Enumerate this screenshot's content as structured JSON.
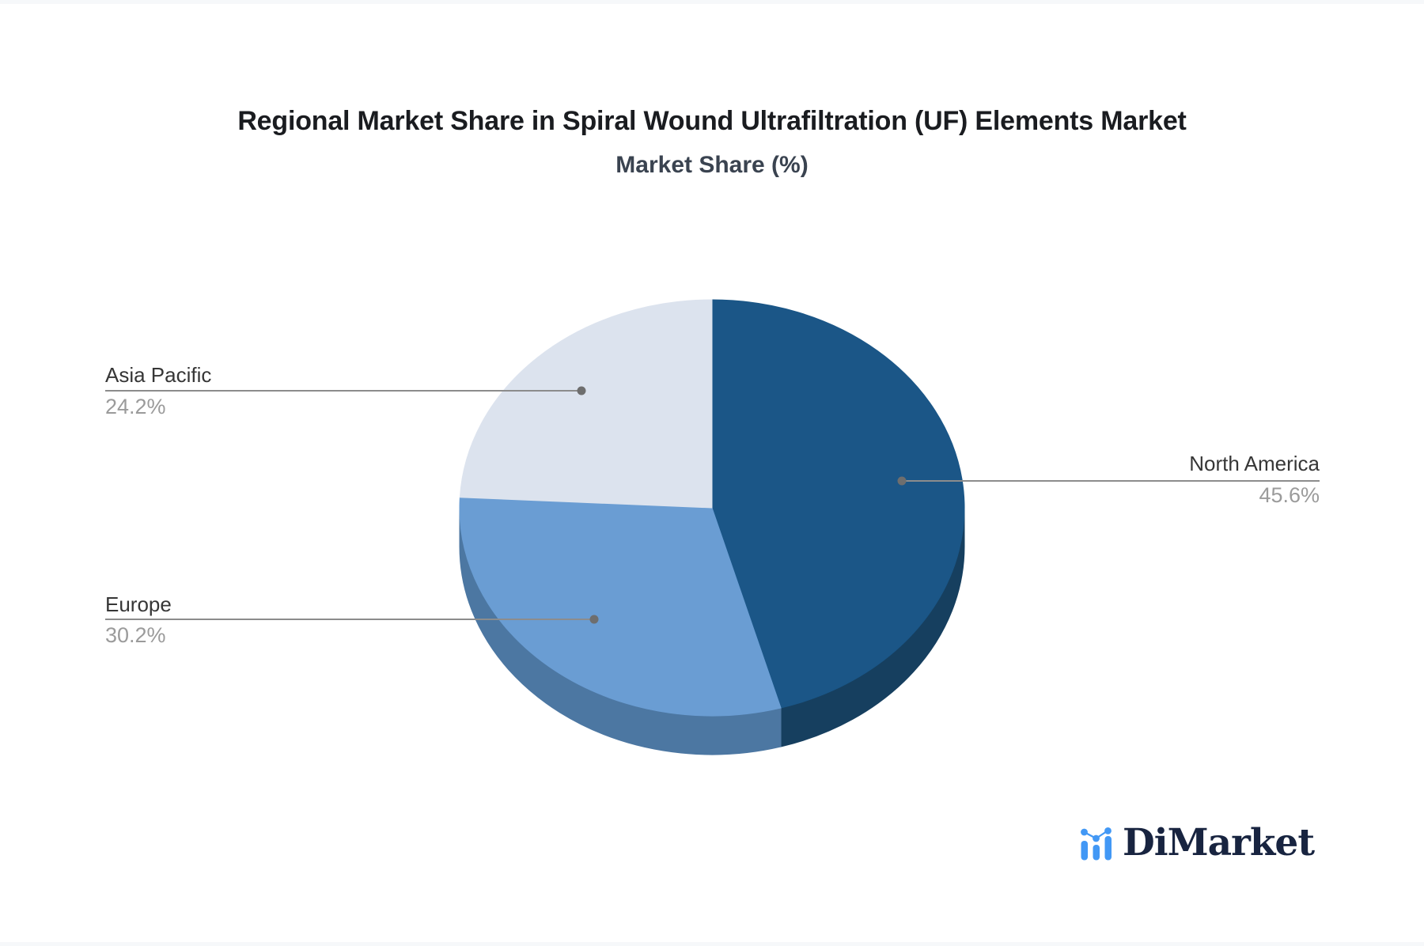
{
  "header": {
    "title": "Regional Market Share in Spiral Wound Ultrafiltration (UF) Elements Market",
    "subtitle": "Market Share (%)"
  },
  "chart_data": {
    "type": "pie",
    "style": "3d",
    "title": "Regional Market Share in Spiral Wound Ultrafiltration (UF) Elements Market",
    "subtitle": "Market Share (%)",
    "unit": "%",
    "start_angle_deg": 0,
    "direction": "clockwise",
    "legend_position": "callout-labels",
    "slices": [
      {
        "label": "North America",
        "value": 45.6,
        "value_label": "45.6%",
        "color": "#1b5687",
        "side_color": "#163f5f"
      },
      {
        "label": "Europe",
        "value": 30.2,
        "value_label": "30.2%",
        "color": "#6a9dd3",
        "side_color": "#4c77a2"
      },
      {
        "label": "Asia Pacific",
        "value": 24.2,
        "value_label": "24.2%",
        "color": "#dce3ee",
        "side_color": "#b9c5d6"
      }
    ],
    "callout_line_color": "#8c8c8c",
    "callout_dot_color": "#6e6e6e",
    "label_color": "#363636",
    "value_color": "#9b9b9b"
  },
  "branding": {
    "logo_text": "DiMarket",
    "logo_icon": "bar-line-chart-icon",
    "logo_text_color": "#182440",
    "logo_icon_color": "#4298f5"
  }
}
